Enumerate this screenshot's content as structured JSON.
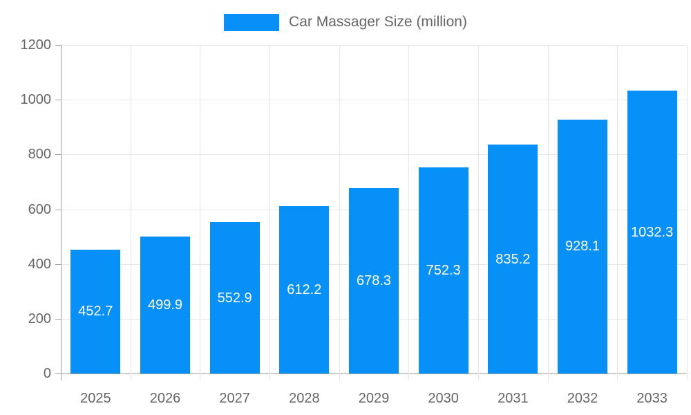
{
  "chart_data": {
    "type": "bar",
    "title": "Car Massager Size (million)",
    "series_name": "Car Massager Size (million)",
    "categories": [
      "2025",
      "2026",
      "2027",
      "2028",
      "2029",
      "2030",
      "2031",
      "2032",
      "2033"
    ],
    "values": [
      452.7,
      499.9,
      552.9,
      612.2,
      678.3,
      752.3,
      835.2,
      928.1,
      1032.3
    ],
    "bar_labels": [
      "452.7",
      "499.9",
      "552.9",
      "612.2",
      "678.3",
      "752.3",
      "835.2",
      "928.1",
      "1032.3"
    ],
    "xlabel": "",
    "ylabel": "",
    "ylim": [
      0,
      1200
    ],
    "yticks": [
      0,
      200,
      400,
      600,
      800,
      1000,
      1200
    ],
    "grid": true,
    "legend_position": "top-center",
    "colors": {
      "bar": "#0890f9",
      "bar_label": "#ffffff",
      "axis_text": "#666666",
      "legend_text": "#666666",
      "gridline": "#e6e6e6",
      "axis_line": "#9e9e9e",
      "background": "#ffffff"
    }
  }
}
